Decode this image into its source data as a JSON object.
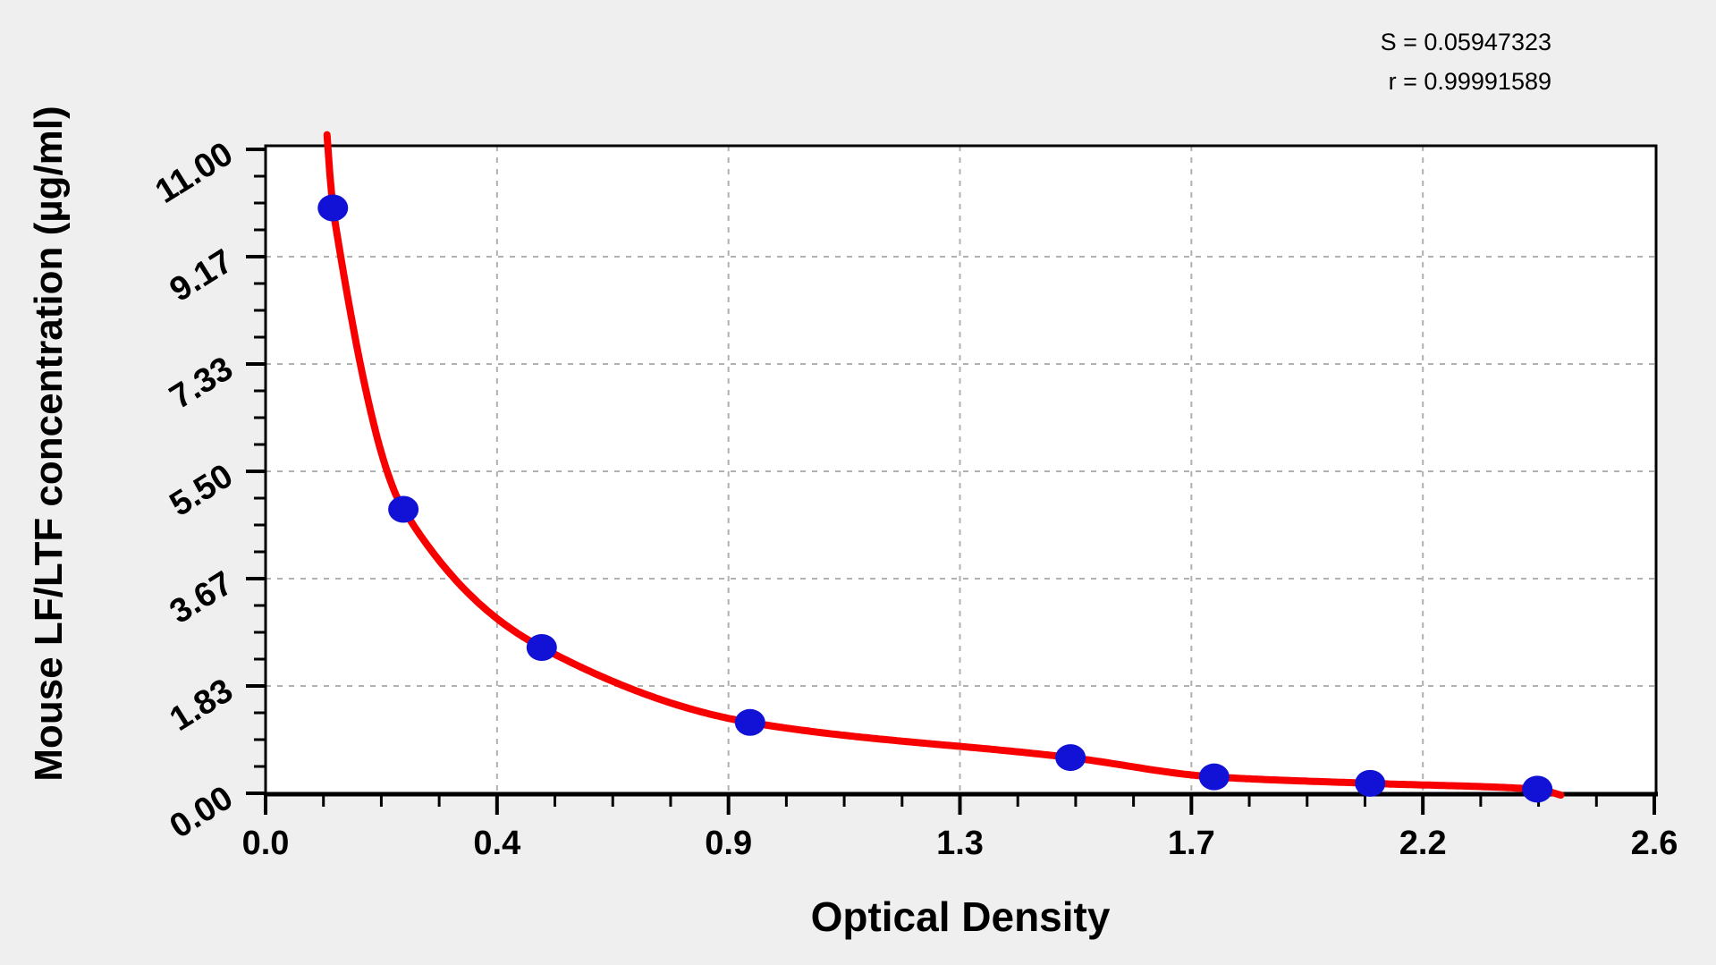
{
  "chart_data": {
    "type": "scatter",
    "title": "",
    "xlabel": "Optical Density",
    "ylabel": "Mouse LF/LTF concentration (µg/ml)",
    "xlim": [
      0,
      2.6
    ],
    "ylim": [
      0,
      11
    ],
    "x_tick_labels": [
      "0.0",
      "0.4",
      "0.9",
      "1.3",
      "1.7",
      "2.2",
      "2.6"
    ],
    "y_tick_labels": [
      "0.00",
      "1.83",
      "3.67",
      "5.50",
      "7.33",
      "9.17",
      "11.00"
    ],
    "x_minor_divisions": 4,
    "y_minor_divisions": 4,
    "grid": "dashed gray lines at interior major ticks, both axes",
    "legend_position": "none",
    "points": [
      {
        "x": 0.126,
        "y": 10.0
      },
      {
        "x": 0.258,
        "y": 4.85
      },
      {
        "x": 0.517,
        "y": 2.49
      },
      {
        "x": 0.907,
        "y": 1.21
      },
      {
        "x": 1.507,
        "y": 0.61
      },
      {
        "x": 1.776,
        "y": 0.28
      },
      {
        "x": 2.068,
        "y": 0.17
      },
      {
        "x": 2.381,
        "y": 0.07
      }
    ],
    "fit_curve": {
      "description": "red regression curve passing through all standard points",
      "start_anchor": {
        "x": 0.115,
        "y": 11.25
      },
      "end_anchor": {
        "x": 2.425,
        "y": -0.03
      }
    },
    "annotations": {
      "s_line": "S = 0.05947323",
      "r_line": "r = 0.99991589"
    },
    "colors": {
      "curve": "#f80000",
      "marker": "#1212d6",
      "grid": "#b0b0b0",
      "axis": "#000000",
      "text": "#000000",
      "background": "#efefef",
      "plot_background": "#ffffff"
    }
  }
}
